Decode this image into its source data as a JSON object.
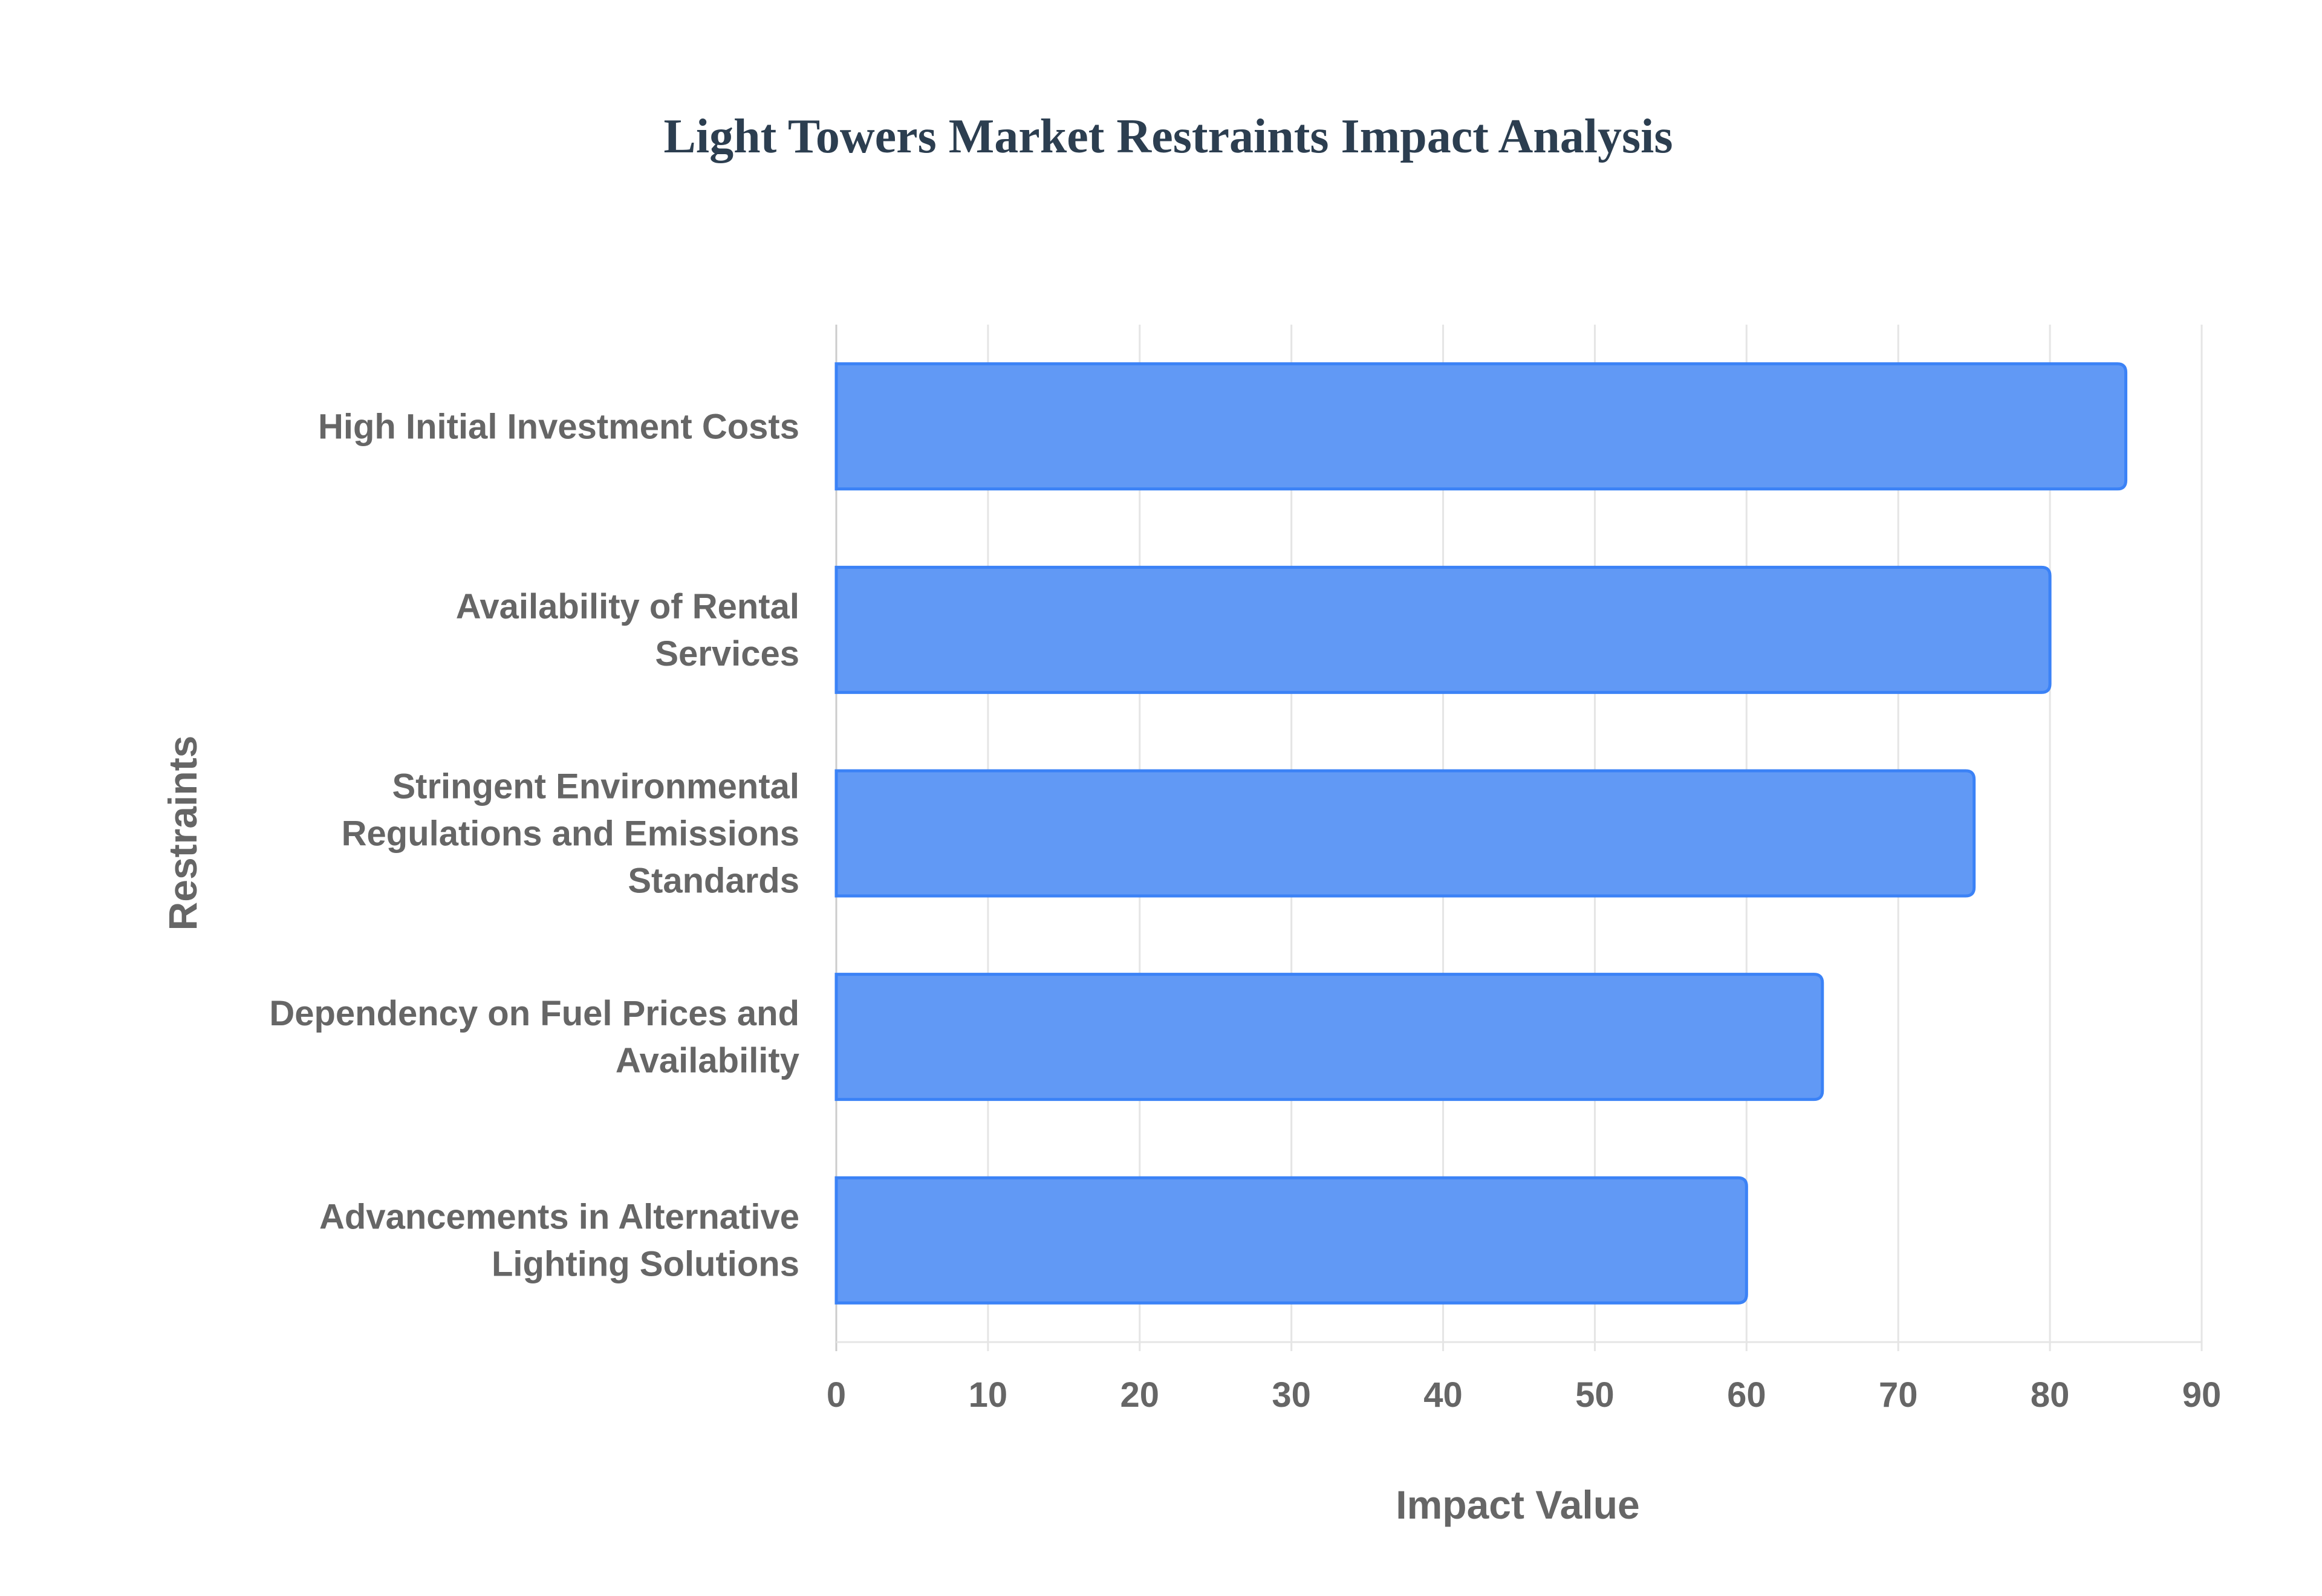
{
  "chart_data": {
    "type": "bar",
    "orientation": "horizontal",
    "title": "Light Towers Market Restraints Impact Analysis",
    "xlabel": "Impact Value",
    "ylabel": "Restraints",
    "categories": [
      [
        "High Initial Investment Costs"
      ],
      [
        "Availability of Rental",
        "Services"
      ],
      [
        "Stringent Environmental",
        "Regulations and Emissions",
        "Standards"
      ],
      [
        "Dependency on Fuel Prices and",
        "Availability"
      ],
      [
        "Advancements in Alternative",
        "Lighting Solutions"
      ]
    ],
    "values": [
      85,
      80,
      75,
      65,
      60
    ],
    "xlim": [
      0,
      90
    ],
    "xticks": [
      "0",
      "10",
      "20",
      "30",
      "40",
      "50",
      "60",
      "70",
      "80",
      "90"
    ],
    "grid": true,
    "legend": "none",
    "colors": {
      "bar_fill": "#6199f5",
      "bar_stroke": "#3b82f6",
      "grid": "#e5e5e5",
      "title": "#2c3e50",
      "text": "#666666"
    }
  }
}
